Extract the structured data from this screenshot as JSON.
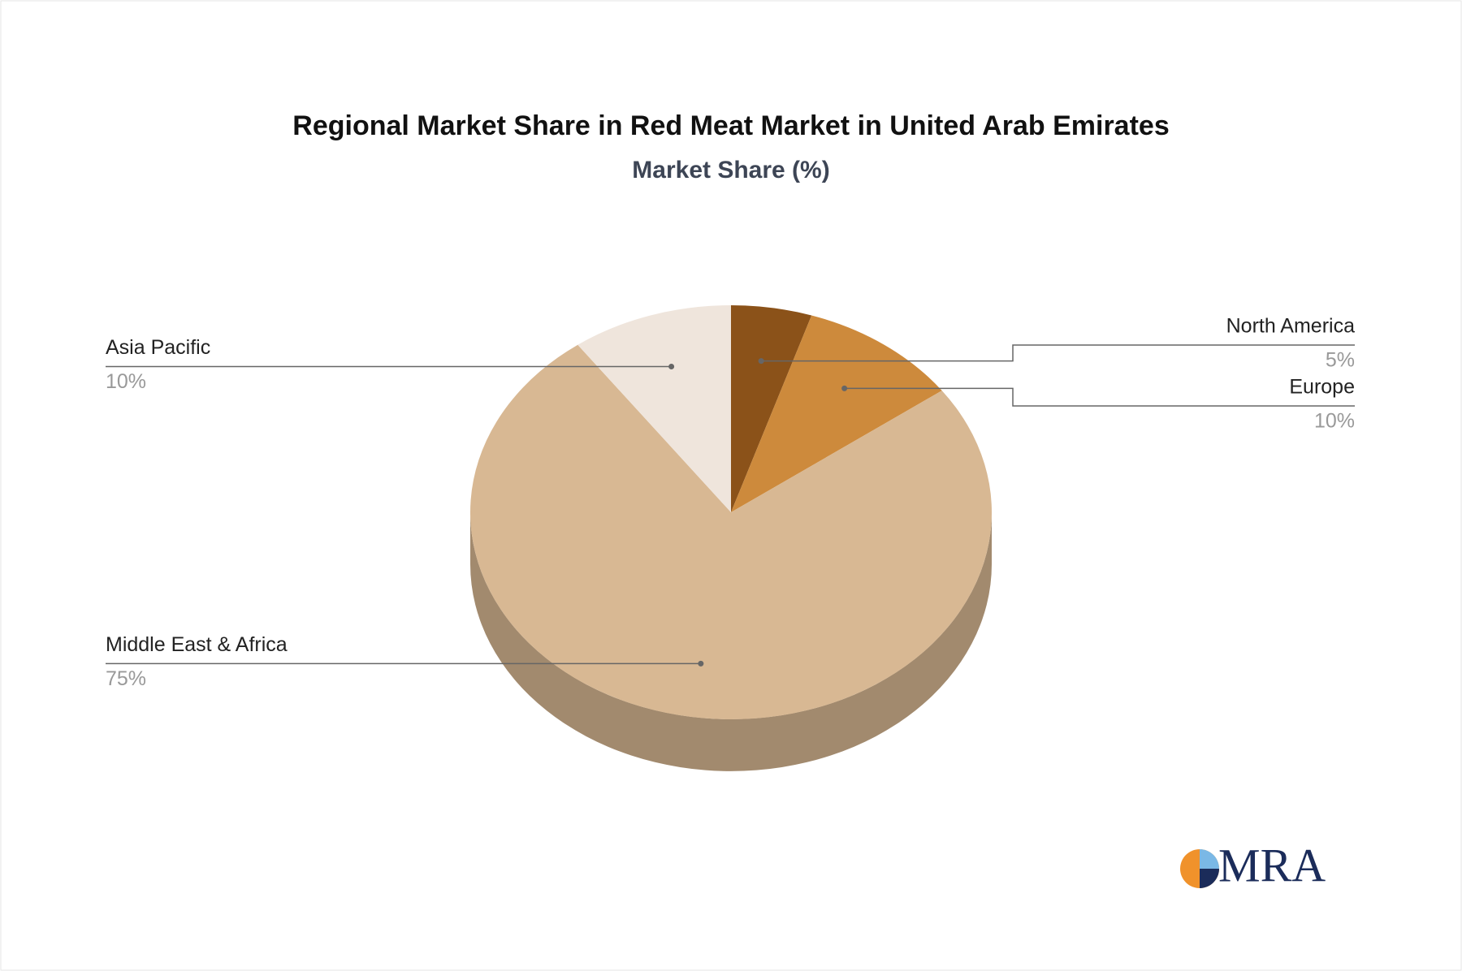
{
  "chart_data": {
    "type": "pie",
    "title": "Regional Market Share in Red Meat Market in United Arab Emirates",
    "subtitle": "Market Share (%)",
    "categories": [
      "North America",
      "Europe",
      "Middle East & Africa",
      "Asia Pacific"
    ],
    "values": [
      5,
      10,
      75,
      10
    ],
    "value_labels": [
      "5%",
      "10%",
      "75%",
      "10%"
    ],
    "colors": [
      "#8b5219",
      "#cd8a3c",
      "#d8b893",
      "#efe5dc"
    ]
  },
  "logo_text": "MRA"
}
